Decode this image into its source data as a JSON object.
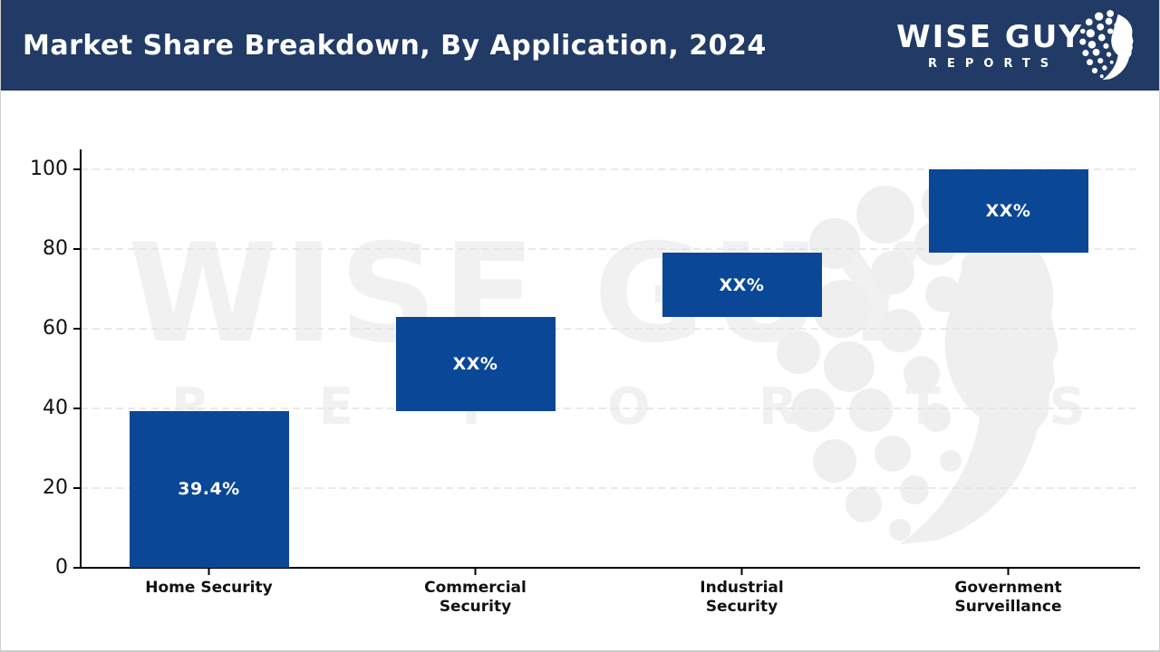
{
  "header": {
    "title": "Market Share Breakdown, By Application, 2024",
    "logo_line1": "WISE GUY",
    "logo_line2": "REPORTS"
  },
  "watermark": {
    "line1": "WISE GUY",
    "line2": "R E P O R T S"
  },
  "colors": {
    "header_bg": "#213A66",
    "bar": "#0A4796",
    "bar_label": "#FFFFFF",
    "grid": "#E2E2E2",
    "axis": "#000000",
    "watermark": "#F1F1F1"
  },
  "chart_data": {
    "type": "bar",
    "subtype": "waterfall-floating-bars",
    "title": "Market Share Breakdown, By Application, 2024",
    "categories": [
      "Home Security",
      "Commercial Security",
      "Industrial Security",
      "Government Surveillance"
    ],
    "categories_lines": [
      [
        "Home Security"
      ],
      [
        "Commercial",
        "Security"
      ],
      [
        "Industrial",
        "Security"
      ],
      [
        "Government",
        "Surveillance"
      ]
    ],
    "series": [
      {
        "name": "Market Share %",
        "segments": [
          {
            "category": "Home Security",
            "start": 0,
            "end": 39.4,
            "label": "39.4%"
          },
          {
            "category": "Commercial Security",
            "start": 39.4,
            "end": 63,
            "label": "XX%"
          },
          {
            "category": "Industrial Security",
            "start": 63,
            "end": 79,
            "label": "XX%"
          },
          {
            "category": "Government Surveillance",
            "start": 79,
            "end": 100,
            "label": "XX%"
          }
        ]
      }
    ],
    "xlabel": "",
    "ylabel": "",
    "ylim": [
      0,
      100
    ],
    "yticks": [
      0,
      20,
      40,
      60,
      80,
      100
    ],
    "grid": "horizontal-dashed",
    "legend": "none"
  }
}
